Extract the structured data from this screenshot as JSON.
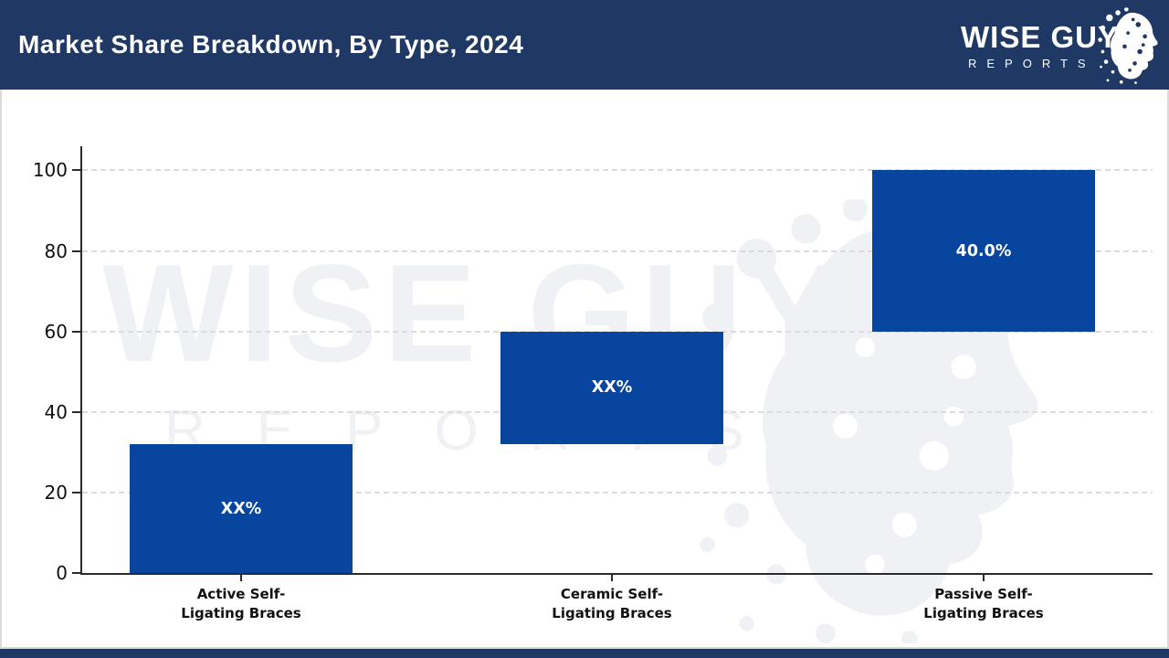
{
  "header": {
    "title": "Market Share Breakdown, By Type, 2024",
    "background_color": "#1f3864",
    "text_color": "#ffffff"
  },
  "logo": {
    "line1": "WISE GUY",
    "line2": "REPORTS"
  },
  "watermark": {
    "line1": "WISE GUY",
    "line2": "REPORTS"
  },
  "footer": {
    "background_color": "#1f3864"
  },
  "chart_data": {
    "type": "waterfall",
    "title": "Market Share Breakdown, By Type, 2024",
    "categories": [
      [
        "Active Self-",
        "Ligating Braces"
      ],
      [
        "Ceramic Self-",
        "Ligating Braces"
      ],
      [
        "Passive Self-",
        "Ligating Braces"
      ]
    ],
    "segments": [
      {
        "category": "Active Self-Ligating Braces",
        "start": 0,
        "end": 32,
        "label": "XX%"
      },
      {
        "category": "Ceramic Self-Ligating Braces",
        "start": 32,
        "end": 60,
        "label": "XX%"
      },
      {
        "category": "Passive Self-Ligating Braces",
        "start": 60,
        "end": 100,
        "label": "40.0%"
      }
    ],
    "bar_color": "#08459e",
    "bar_label_color": "#ffffff",
    "yticks": [
      0,
      20,
      40,
      60,
      80,
      100
    ],
    "ylim": [
      0,
      106
    ],
    "grid": "dashed-horizontal",
    "legend": "none"
  }
}
